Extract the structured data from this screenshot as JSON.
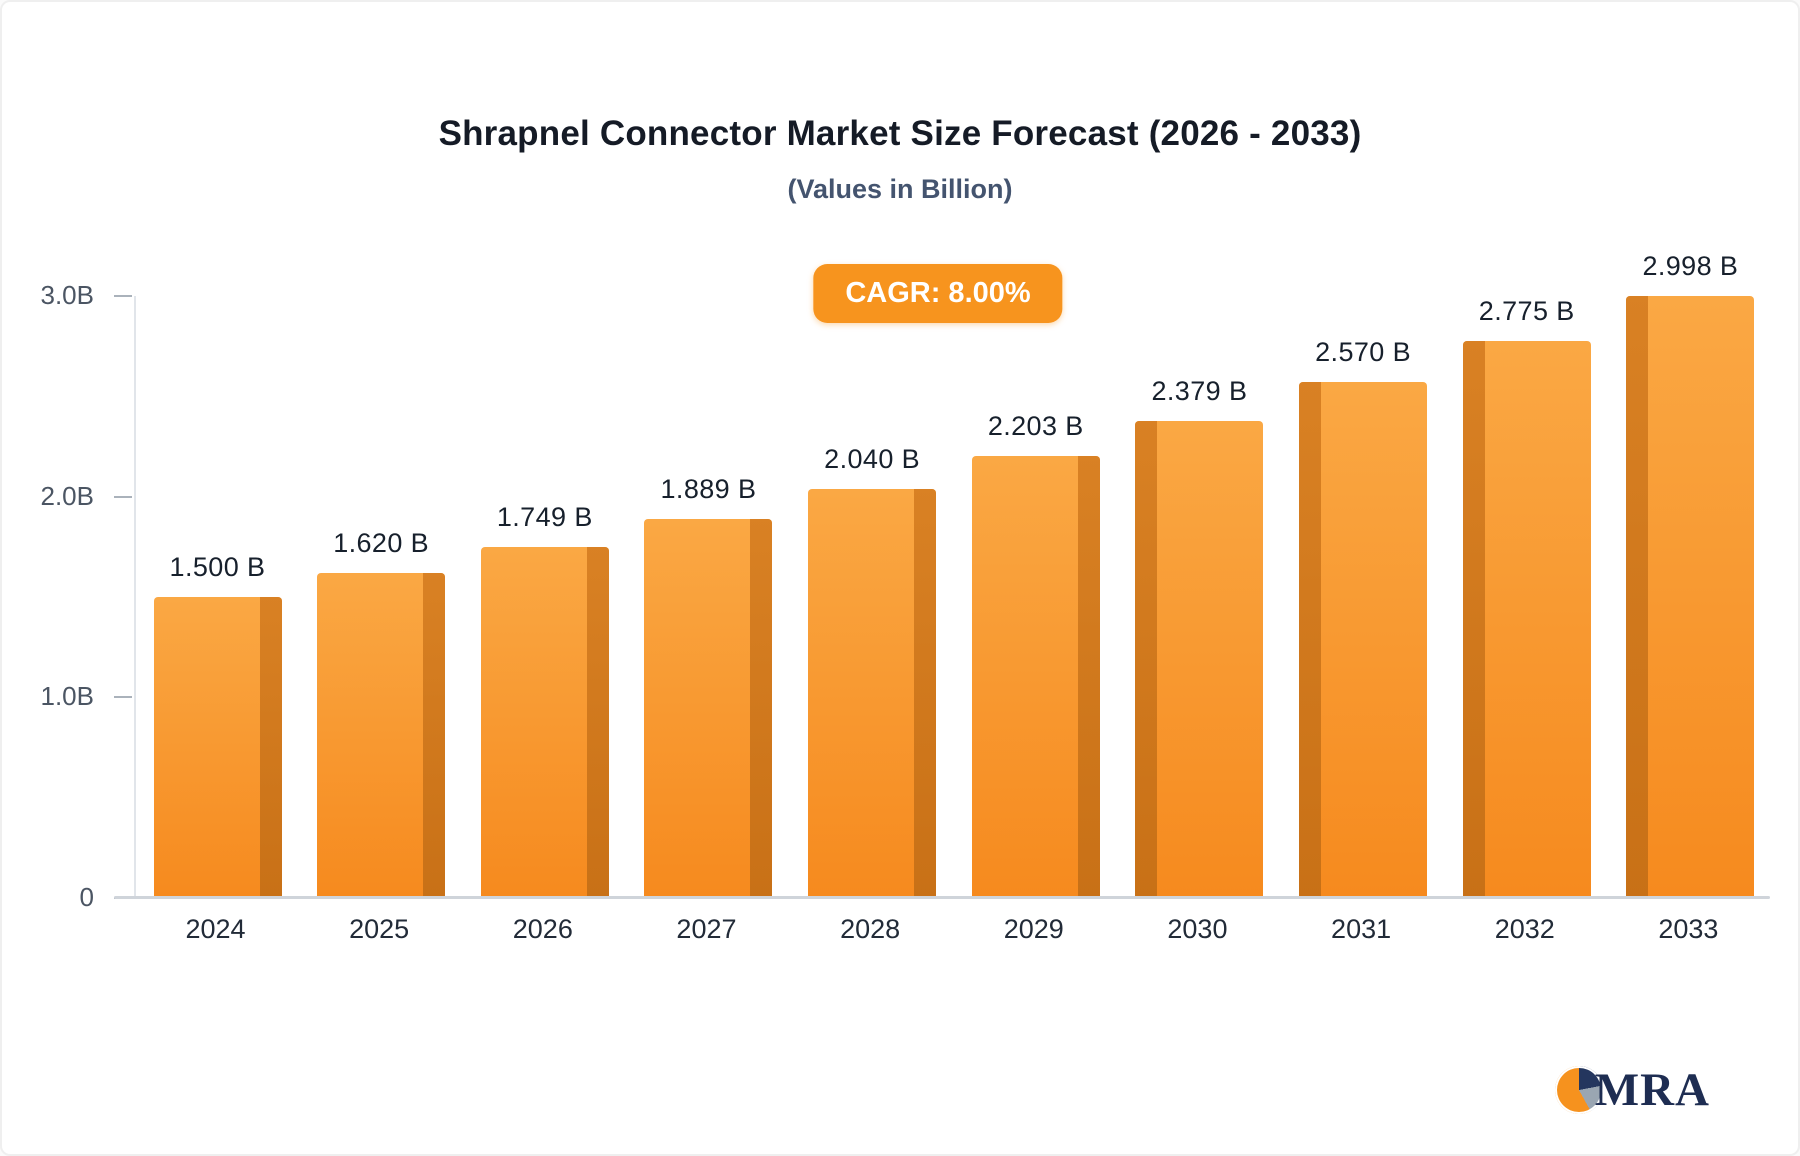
{
  "chart_data": {
    "type": "bar",
    "title": "Shrapnel Connector Market Size Forecast (2026 - 2033)",
    "subtitle": "(Values in Billion)",
    "annotation": "CAGR: 8.00%",
    "categories": [
      "2024",
      "2025",
      "2026",
      "2027",
      "2028",
      "2029",
      "2030",
      "2031",
      "2032",
      "2033"
    ],
    "values": [
      1.5,
      1.62,
      1.749,
      1.889,
      2.04,
      2.203,
      2.379,
      2.57,
      2.775,
      2.998
    ],
    "value_labels": [
      "1.500 B",
      "1.620 B",
      "1.749 B",
      "1.889 B",
      "2.040 B",
      "2.203 B",
      "2.379 B",
      "2.570 B",
      "2.775 B",
      "2.998 B"
    ],
    "xlabel": "",
    "ylabel": "",
    "ylim": [
      0,
      3.0
    ],
    "yticks": [
      {
        "value": 0,
        "label": "0"
      },
      {
        "value": 1.0,
        "label": "1.0B"
      },
      {
        "value": 2.0,
        "label": "2.0B"
      },
      {
        "value": 3.0,
        "label": "3.0B"
      }
    ],
    "grid": false,
    "legend": false,
    "bar_color_top": "#FAA844",
    "bar_color_bottom": "#F68A1E",
    "bar_side_color": "#C9721B",
    "badge_color": "#F7941E"
  },
  "branding": {
    "logo_text": "MRA",
    "logo_colors": {
      "navy": "#24365E",
      "gray": "#9AA6B2",
      "orange": "#F6921E"
    }
  }
}
